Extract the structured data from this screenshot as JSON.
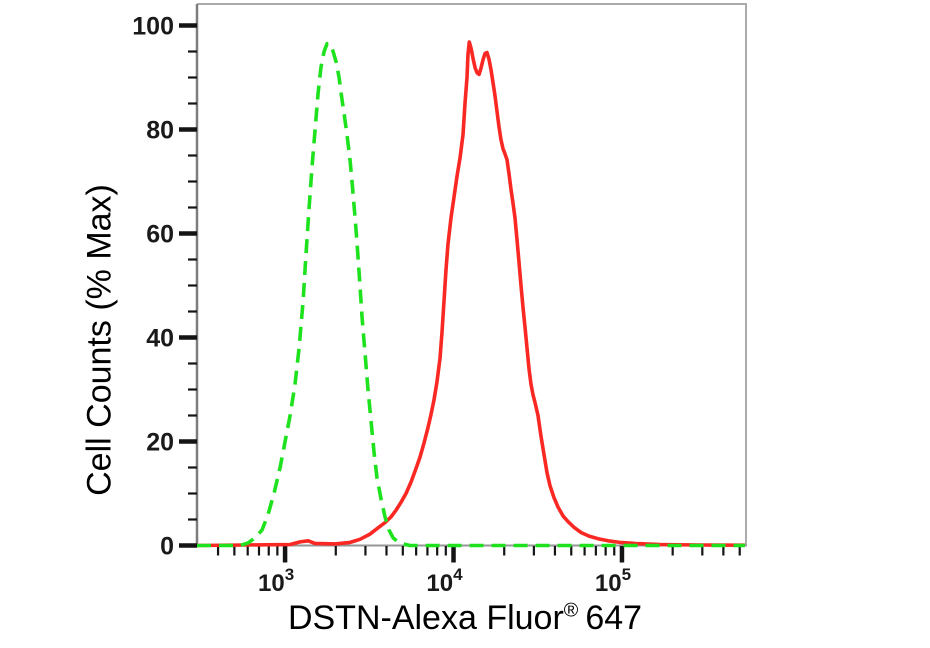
{
  "chart_data": {
    "type": "line",
    "subtype": "flow-cytometry-histogram",
    "title": "",
    "ylabel": "Cell Counts (% Max)",
    "xlabel": {
      "main": "DSTN-Alexa Fluor",
      "sup": "®",
      "suffix": "647"
    },
    "x_scale": "log10",
    "x_range": [
      300,
      545000
    ],
    "y_range": [
      0,
      100
    ],
    "y_ticks_major": [
      0,
      20,
      40,
      60,
      80,
      100
    ],
    "y_minor_step": 5,
    "x_ticks_major": [
      {
        "value": 1000,
        "base": "10",
        "exp": "3"
      },
      {
        "value": 10000,
        "base": "10",
        "exp": "4"
      },
      {
        "value": 100000,
        "base": "10",
        "exp": "5"
      }
    ],
    "x_minor_decades": [
      2,
      3,
      4,
      5
    ],
    "x_minor_multiples": [
      2,
      3,
      4,
      5,
      6,
      7,
      8,
      9
    ],
    "grid": false,
    "legend": "none",
    "colors": {
      "frame": "#ababab",
      "axis_left": "#7d7d7d",
      "axis_bottom": "#969696",
      "tick": "#141414",
      "tick_label": "#1a1a1a",
      "axis_title": "#000000",
      "green_series": "#1ee21e",
      "red_series": "#fa2823"
    },
    "series": [
      {
        "name": "red-solid",
        "style": "solid",
        "color": "#fa2823",
        "width": 3.6,
        "dash": null,
        "points": [
          [
            300,
            0
          ],
          [
            1071,
            0.2
          ],
          [
            1228,
            0.7
          ],
          [
            1369,
            0.9
          ],
          [
            1507,
            0.4
          ],
          [
            1980,
            0.3
          ],
          [
            2431,
            0.6
          ],
          [
            2786,
            1.2
          ],
          [
            3195,
            2.2
          ],
          [
            3565,
            3.4
          ],
          [
            3922,
            4.4
          ],
          [
            4257,
            5.5
          ],
          [
            4559,
            6.8
          ],
          [
            4881,
            8.3
          ],
          [
            5224,
            10
          ],
          [
            5595,
            12.2
          ],
          [
            5988,
            14.8
          ],
          [
            6327,
            17
          ],
          [
            6683,
            19.7
          ],
          [
            7059,
            22.7
          ],
          [
            7354,
            25.2
          ],
          [
            7661,
            28
          ],
          [
            7984,
            31.5
          ],
          [
            8315,
            36
          ],
          [
            8547,
            41
          ],
          [
            8780,
            47
          ],
          [
            9026,
            53
          ],
          [
            9273,
            58
          ],
          [
            9666,
            63
          ],
          [
            10070,
            67
          ],
          [
            10490,
            71
          ],
          [
            10930,
            74.5
          ],
          [
            11230,
            77.5
          ],
          [
            11390,
            79
          ],
          [
            11700,
            85
          ],
          [
            12030,
            90
          ],
          [
            12190,
            94.5
          ],
          [
            12400,
            96.8
          ],
          [
            12740,
            95.5
          ],
          [
            13086,
            93.5
          ],
          [
            13441,
            91.8
          ],
          [
            13806,
            90.9
          ],
          [
            14181,
            90.6
          ],
          [
            14566,
            91.8
          ],
          [
            14962,
            93.4
          ],
          [
            15368,
            94.6
          ],
          [
            15810,
            94.8
          ],
          [
            16240,
            93.5
          ],
          [
            16700,
            91.5
          ],
          [
            17160,
            89
          ],
          [
            17630,
            86.5
          ],
          [
            18120,
            83.5
          ],
          [
            18620,
            80.5
          ],
          [
            19140,
            78
          ],
          [
            19670,
            76.3
          ],
          [
            20220,
            75.3
          ],
          [
            20770,
            74.2
          ],
          [
            21350,
            71.5
          ],
          [
            21950,
            68.5
          ],
          [
            22550,
            65.8
          ],
          [
            23170,
            63
          ],
          [
            23810,
            58.8
          ],
          [
            24470,
            54.5
          ],
          [
            25150,
            50
          ],
          [
            25850,
            45.8
          ],
          [
            26560,
            42
          ],
          [
            27300,
            38
          ],
          [
            28060,
            34
          ],
          [
            28830,
            31
          ],
          [
            29630,
            29
          ],
          [
            30460,
            27.5
          ],
          [
            31730,
            25
          ],
          [
            33060,
            21
          ],
          [
            34440,
            17.5
          ],
          [
            35890,
            14
          ],
          [
            37390,
            11.5
          ],
          [
            39480,
            9.2
          ],
          [
            41700,
            7.4
          ],
          [
            44660,
            5.7
          ],
          [
            47810,
            4.6
          ],
          [
            51900,
            3.5
          ],
          [
            57110,
            2.5
          ],
          [
            63720,
            1.8
          ],
          [
            72040,
            1.3
          ],
          [
            82600,
            0.9
          ],
          [
            97300,
            0.6
          ],
          [
            119400,
            0.4
          ],
          [
            168100,
            0.2
          ],
          [
            290300,
            0.1
          ],
          [
            537000,
            0.05
          ]
        ]
      },
      {
        "name": "green-dashed",
        "style": "dashed",
        "color": "#1ee21e",
        "width": 3.6,
        "dash": [
          14,
          8
        ],
        "points": [
          [
            300,
            0
          ],
          [
            541,
            0
          ],
          [
            603,
            0.5
          ],
          [
            664,
            1.5
          ],
          [
            730,
            3
          ],
          [
            793,
            6
          ],
          [
            860,
            10
          ],
          [
            934,
            15
          ],
          [
            1000,
            20
          ],
          [
            1071,
            25
          ],
          [
            1146,
            31
          ],
          [
            1211,
            38
          ],
          [
            1279,
            47
          ],
          [
            1332,
            56
          ],
          [
            1388,
            65
          ],
          [
            1446,
            73
          ],
          [
            1507,
            80
          ],
          [
            1570,
            87
          ],
          [
            1635,
            92
          ],
          [
            1704,
            95
          ],
          [
            1776,
            96.5
          ],
          [
            1849,
            96.5
          ],
          [
            1927,
            95
          ],
          [
            2008,
            93
          ],
          [
            2092,
            90
          ],
          [
            2150,
            87
          ],
          [
            2240,
            83
          ],
          [
            2333,
            79
          ],
          [
            2431,
            74
          ],
          [
            2498,
            70
          ],
          [
            2603,
            63
          ],
          [
            2675,
            58
          ],
          [
            2786,
            50
          ],
          [
            2863,
            44
          ],
          [
            2983,
            37
          ],
          [
            3108,
            30
          ],
          [
            3238,
            24
          ],
          [
            3374,
            18
          ],
          [
            3515,
            13
          ],
          [
            3713,
            9
          ],
          [
            3922,
            5.5
          ],
          [
            4142,
            3
          ],
          [
            4375,
            1.5
          ],
          [
            4684,
            0.7
          ],
          [
            5016,
            0.3
          ],
          [
            5518,
            0
          ],
          [
            537000,
            0
          ]
        ]
      }
    ]
  }
}
